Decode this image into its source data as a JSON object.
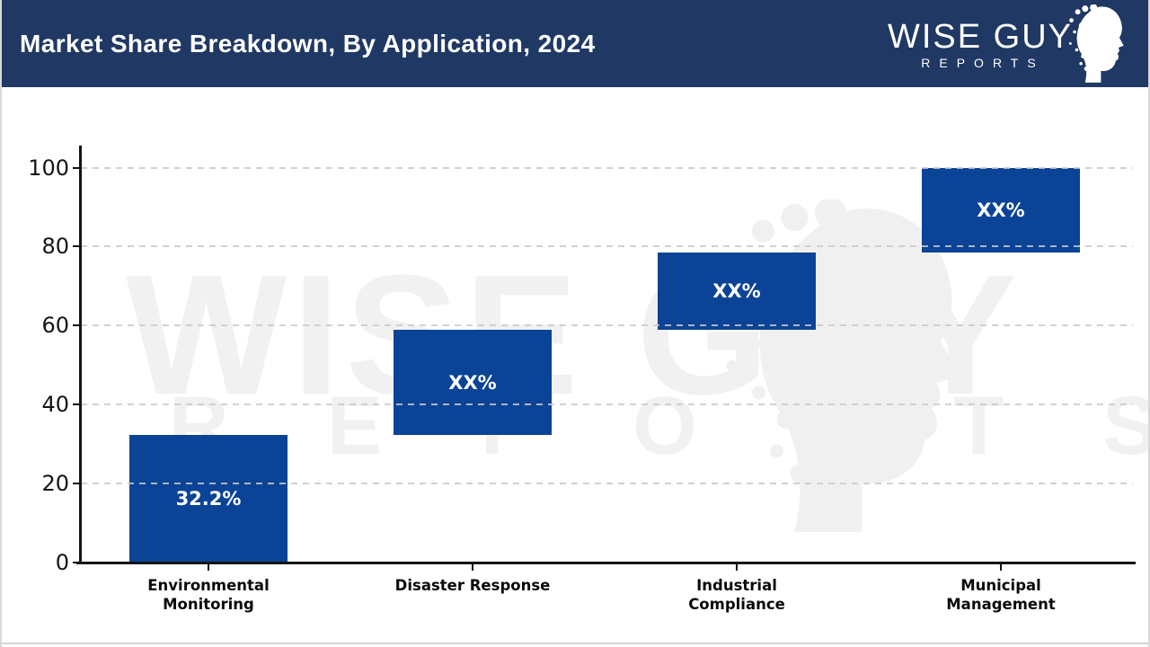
{
  "header": {
    "title": "Market Share Breakdown, By Application, 2024",
    "logo": {
      "line1": "WISE GUY",
      "line2": "REPORTS"
    }
  },
  "watermark": {
    "line1": "WISE GUY",
    "line2": "R E P O R T S"
  },
  "colors": {
    "header_bg": "#203864",
    "bar": "#0b4396",
    "grid": "#c9c9c9",
    "axis": "#141414",
    "bar_label": "#ffffff"
  },
  "chart_data": {
    "type": "bar",
    "subtype": "waterfall",
    "title": "Market Share Breakdown, By Application, 2024",
    "xlabel": "",
    "ylabel": "",
    "ylim": [
      0,
      100
    ],
    "yticks": [
      0,
      20,
      40,
      60,
      80,
      100
    ],
    "ytick_labels": [
      "0",
      "20",
      "40",
      "60",
      "80",
      "100"
    ],
    "grid": "horizontal-dashed",
    "legend": "none",
    "categories": [
      "Environmental Monitoring",
      "Disaster Response",
      "Industrial Compliance",
      "Municipal Management"
    ],
    "segments": [
      {
        "category": "Environmental Monitoring",
        "label_lines": [
          "Environmental",
          "Monitoring"
        ],
        "start": 0,
        "end": 32.2,
        "label": "32.2%"
      },
      {
        "category": "Disaster Response",
        "label_lines": [
          "Disaster Response"
        ],
        "start": 32.2,
        "end": 59,
        "label": "XX%"
      },
      {
        "category": "Industrial Compliance",
        "label_lines": [
          "Industrial",
          "Compliance"
        ],
        "start": 59,
        "end": 78.5,
        "label": "XX%"
      },
      {
        "category": "Municipal Management",
        "label_lines": [
          "Municipal",
          "Management"
        ],
        "start": 78.5,
        "end": 100,
        "label": "XX%"
      }
    ]
  }
}
